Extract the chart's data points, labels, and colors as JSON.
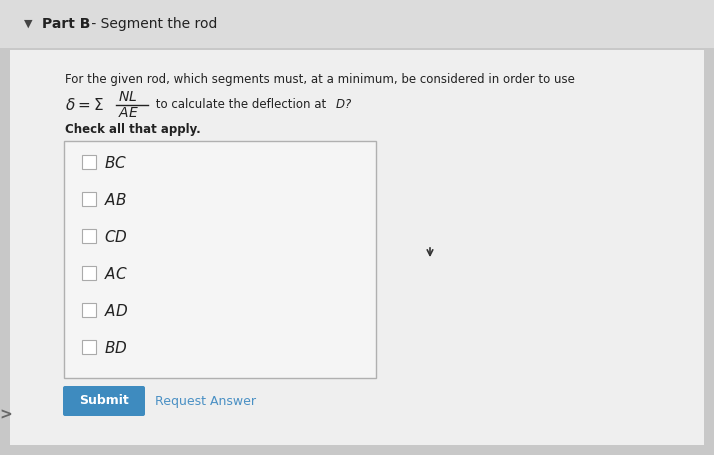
{
  "bg_color": "#c8c8c8",
  "header_bg": "#dcdcdc",
  "panel_bg": "#efefef",
  "box_bg": "#f5f5f5",
  "box_border": "#b0b0b0",
  "title_bold": "Part B",
  "title_dash": " - Segment the rod",
  "q_line1": "For the given rod, which segments must, at a minimum, be considered in order to use",
  "q_line2": " to calculate the deflection at ",
  "q_D": "D?",
  "check_text": "Check all that apply.",
  "options": [
    "BC",
    "AB",
    "CD",
    "AC",
    "AD",
    "BD"
  ],
  "submit_bg": "#3e8bbf",
  "submit_text": "Submit",
  "submit_fg": "#ffffff",
  "request_text": "Request Answer",
  "request_fg": "#4a90c4",
  "text_color": "#222222",
  "tri_color": "#444444"
}
